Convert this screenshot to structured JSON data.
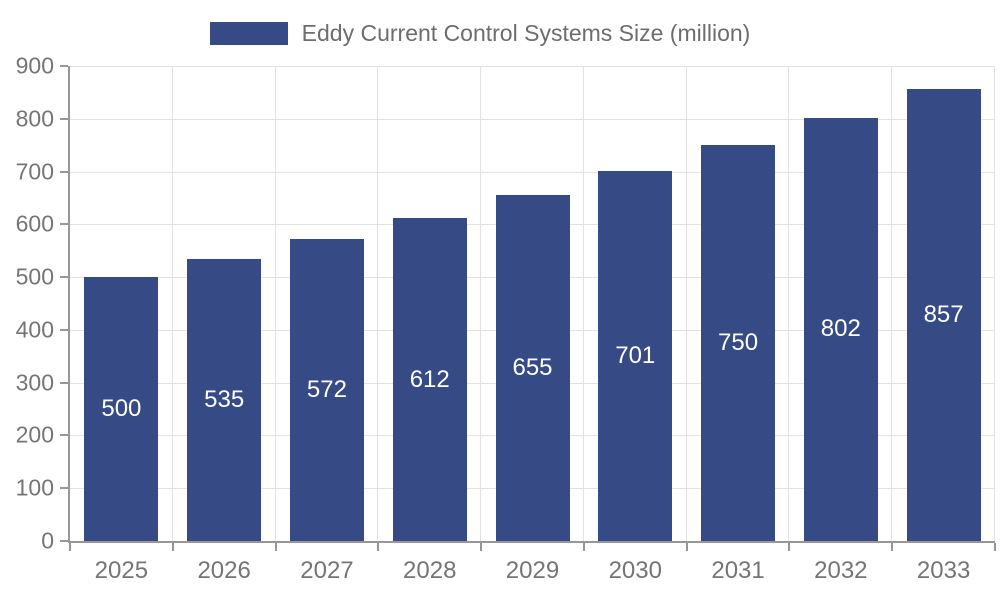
{
  "legend": {
    "label": "Eddy Current Control Systems Size (million)"
  },
  "colors": {
    "background": "#ffffff",
    "bar": "#364a85",
    "bar_label": "#ffffff",
    "axis": "#979797",
    "grid": "#e2e2e2",
    "tick_text": "#757575",
    "legend_text": "#6d6d6d"
  },
  "chart_data": {
    "type": "bar",
    "title": "Eddy Current Control Systems Size (million)",
    "categories": [
      "2025",
      "2026",
      "2027",
      "2028",
      "2029",
      "2030",
      "2031",
      "2032",
      "2033"
    ],
    "values": [
      500,
      535,
      572,
      612,
      655,
      701,
      750,
      802,
      857
    ],
    "xlabel": "",
    "ylabel": "",
    "ylim": [
      0,
      900
    ],
    "ytick_step": 100,
    "grid": true,
    "legend_position": "top-center",
    "bar_label_position": "inside-center",
    "bar_width_fraction": 0.72
  }
}
